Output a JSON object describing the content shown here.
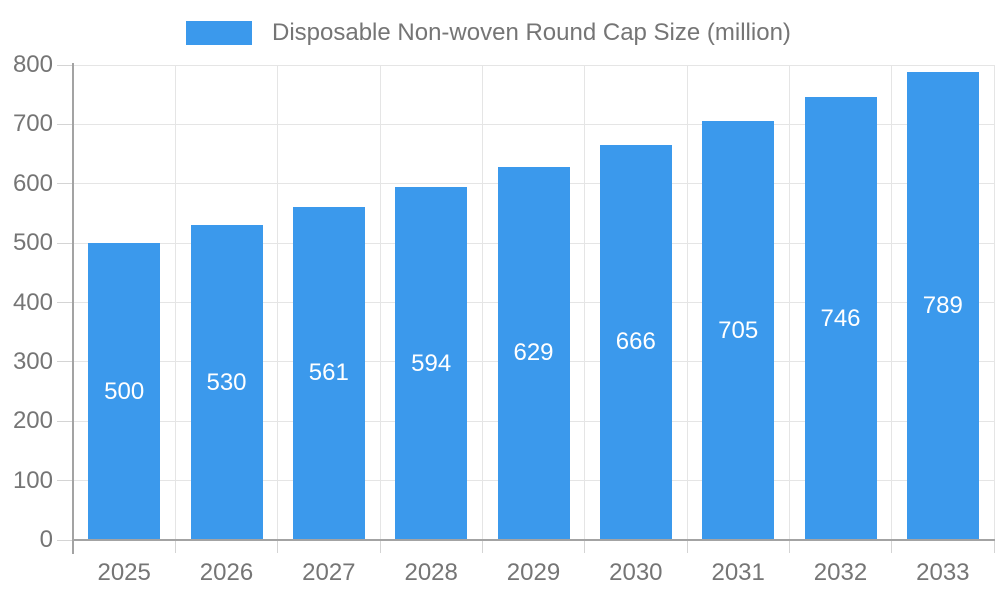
{
  "chart_data": {
    "type": "bar",
    "title": "Disposable Non-woven Round Cap Size (million)",
    "categories": [
      "2025",
      "2026",
      "2027",
      "2028",
      "2029",
      "2030",
      "2031",
      "2032",
      "2033"
    ],
    "values": [
      500,
      530,
      561,
      594,
      629,
      666,
      705,
      746,
      789
    ],
    "xlabel": "",
    "ylabel": "",
    "ylim": [
      0,
      800
    ],
    "ytick_step": 100,
    "grid": true,
    "bar_labels_inside": true,
    "legend_position": "top-center"
  },
  "colors": {
    "bar": "#3B99EC",
    "bar_label": "#FFFFFF",
    "axis_text": "#757575",
    "grid_line": "#E5E5E5",
    "axis_line": "#A3A3A3",
    "tick": "#D4D4D4",
    "background": "#FFFFFF"
  }
}
